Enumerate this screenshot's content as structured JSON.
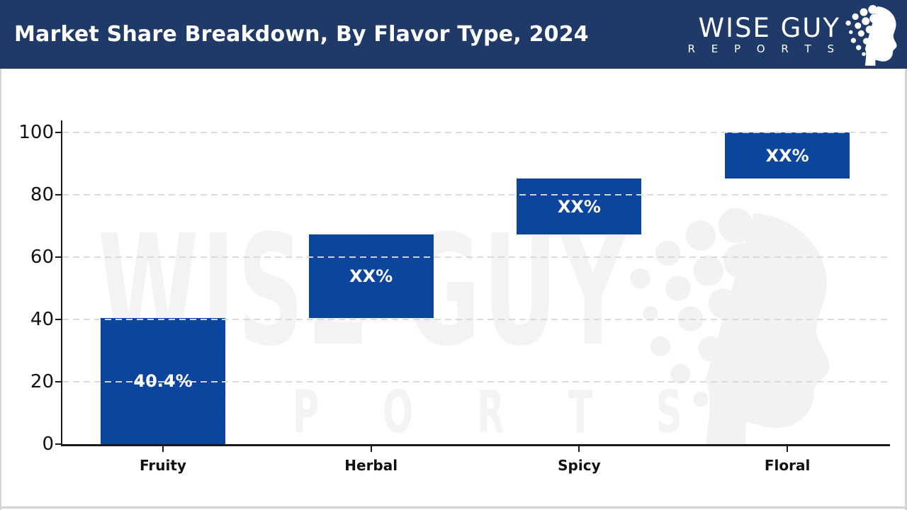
{
  "header": {
    "title": "Market Share Breakdown, By Flavor Type, 2024",
    "bg_color": "#1f3a68",
    "logo": {
      "line1": "WISE GUY",
      "line2": "R E P O R T S"
    }
  },
  "watermark": {
    "line1": "WISE GUY",
    "line2": "R E P O R T S"
  },
  "chart_data": {
    "type": "bar",
    "subtype": "waterfall",
    "title": "Market Share Breakdown, By Flavor Type, 2024",
    "xlabel": "",
    "ylabel": "",
    "categories": [
      "Fruity",
      "Herbal",
      "Spicy",
      "Floral"
    ],
    "segments": [
      {
        "category": "Fruity",
        "start": 0,
        "end": 40.4,
        "label": "40.4%"
      },
      {
        "category": "Herbal",
        "start": 40.4,
        "end": 67.3,
        "label": "XX%"
      },
      {
        "category": "Spicy",
        "start": 67.3,
        "end": 85.2,
        "label": "XX%"
      },
      {
        "category": "Floral",
        "start": 85.2,
        "end": 100,
        "label": "XX%"
      }
    ],
    "yticks": [
      0,
      20,
      40,
      60,
      80,
      100
    ],
    "ylim": [
      0,
      100
    ],
    "bar_color": "#0b459d",
    "grid": "horizontal-dashed",
    "grid_color": "#d9d9d9",
    "legend": "none"
  }
}
